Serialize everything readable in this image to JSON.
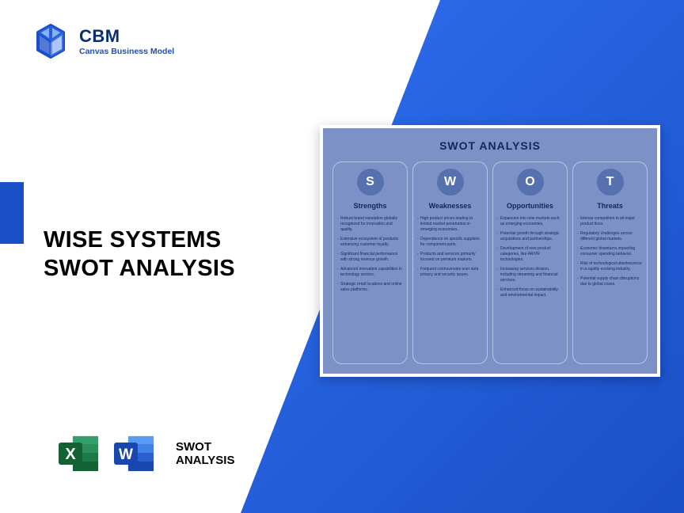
{
  "colors": {
    "primary_blue": "#1a4fc7",
    "gradient_start": "#2e6ff0",
    "gradient_end": "#1a4fc7",
    "card_bg": "#7c92c6",
    "circle_bg": "#5670b0",
    "dark_navy": "#12285c",
    "excel_green": "#1e7a44",
    "word_blue": "#2a5fd0"
  },
  "logo": {
    "title": "CBM",
    "subtitle": "Canvas Business Model"
  },
  "heading_line1": "WISE SYSTEMS",
  "heading_line2": "SWOT ANALYSIS",
  "bottom_label_line1": "SWOT",
  "bottom_label_line2": "ANALYSIS",
  "swot": {
    "title": "SWOT ANALYSIS",
    "columns": [
      {
        "letter": "S",
        "title": "Strengths",
        "items": [
          "Robust brand reputation globally recognized for innovation and quality.",
          "Extensive ecosystem of products enhancing customer loyalty.",
          "Significant financial performance with strong revenue growth.",
          "Advanced innovation capabilities in technology sectors.",
          "Strategic retail locations and online sales platforms."
        ]
      },
      {
        "letter": "W",
        "title": "Weaknesses",
        "items": [
          "High product prices leading to limited market penetration in emerging economies.",
          "Dependence on specific suppliers for component parts.",
          "Products and services primarily focused on premium markets.",
          "Frequent controversies over data privacy and security issues."
        ]
      },
      {
        "letter": "O",
        "title": "Opportunities",
        "items": [
          "Expansion into new markets such as emerging economies.",
          "Potential growth through strategic acquisitions and partnerships.",
          "Development of new product categories, like AR/VR technologies.",
          "Increasing services division, including streaming and financial services.",
          "Enhanced focus on sustainability and environmental impact."
        ]
      },
      {
        "letter": "T",
        "title": "Threats",
        "items": [
          "Intense competition in all major product lines.",
          "Regulatory challenges across different global markets.",
          "Economic downturns impacting consumer spending behavior.",
          "Risk of technological obsolescence in a rapidly evolving industry.",
          "Potential supply chain disruptions due to global crises."
        ]
      }
    ]
  }
}
